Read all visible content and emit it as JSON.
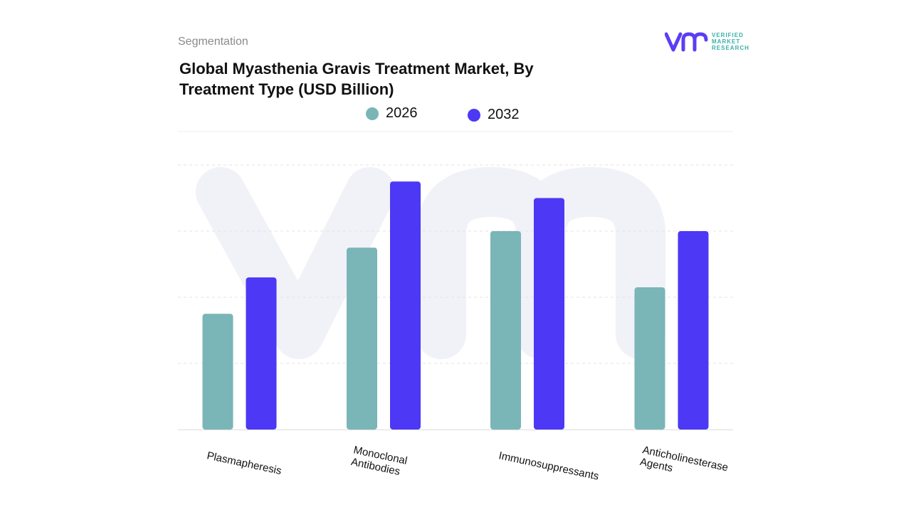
{
  "header": {
    "segmentation_label": "Segmentation",
    "title_line1": "Global Myasthenia Gravis Treatment Market, By",
    "title_line2": "Treatment Type (USD Billion)"
  },
  "logo": {
    "line1": "VERIFIED",
    "line2": "MARKET",
    "line3": "RESEARCH",
    "brand_color": "#5b3df5",
    "accent_color": "#3ab0a7"
  },
  "colors": {
    "series_2026": "#7ab5b8",
    "series_2032": "#4c38f5",
    "grid": "#e3e3e3",
    "watermark": "#f1f1f8"
  },
  "chart_data": {
    "type": "bar",
    "title": "Global Myasthenia Gravis Treatment Market, By Treatment Type (USD Billion)",
    "categories": [
      "Plasmapheresis",
      "Monoclonal Antibodies",
      "Immunosuppressants",
      "Anticholinesterase Agents"
    ],
    "category_label_lines": [
      [
        "Plasmapheresis"
      ],
      [
        "Monoclonal",
        "Antibodies"
      ],
      [
        "Immunosuppressants"
      ],
      [
        "Anticholinesterase",
        "Agents"
      ]
    ],
    "series": [
      {
        "name": "2026",
        "values": [
          1.75,
          2.75,
          3.0,
          2.15
        ]
      },
      {
        "name": "2032",
        "values": [
          2.3,
          3.75,
          3.5,
          3.0
        ]
      }
    ],
    "ylim": [
      0,
      4.0
    ],
    "grid": true,
    "legend_position": "top-center",
    "xlabel": "",
    "ylabel": ""
  }
}
